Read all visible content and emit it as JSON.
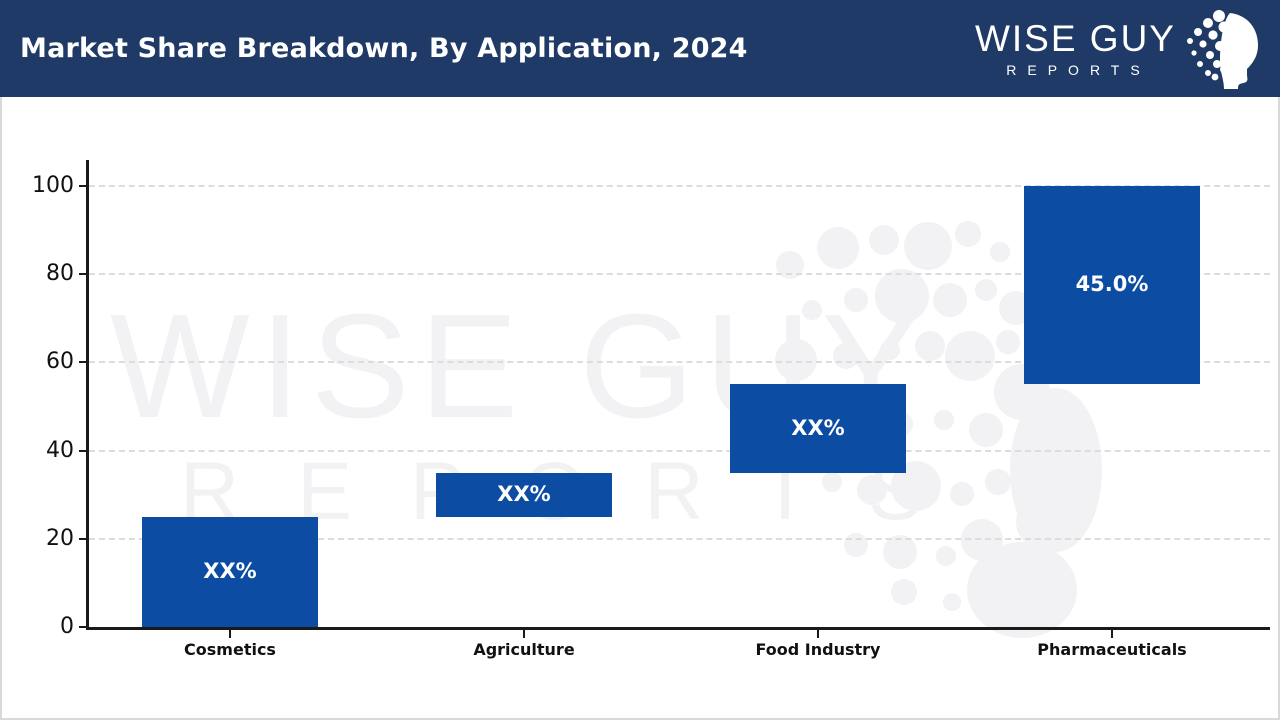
{
  "header": {
    "title": "Market Share Breakdown, By Application, 2024",
    "logo": {
      "line1": "WISE GUY",
      "line2": "REPORTS"
    }
  },
  "watermark": {
    "line1": "WISE GUY",
    "line2": "REPORTS"
  },
  "chart_data": {
    "type": "bar",
    "subtype": "floating-waterfall",
    "title": "Market Share Breakdown, By Application, 2024",
    "xlabel": "",
    "ylabel": "",
    "categories": [
      "Cosmetics",
      "Agriculture",
      "Food Industry",
      "Pharmaceuticals"
    ],
    "segments": [
      {
        "category": "Cosmetics",
        "start": 0,
        "end": 25,
        "value": 25,
        "label": "XX%"
      },
      {
        "category": "Agriculture",
        "start": 25,
        "end": 35,
        "value": 10,
        "label": "XX%"
      },
      {
        "category": "Food Industry",
        "start": 35,
        "end": 55,
        "value": 20,
        "label": "XX%"
      },
      {
        "category": "Pharmaceuticals",
        "start": 55,
        "end": 100,
        "value": 45,
        "label": "45.0%"
      }
    ],
    "yticks": [
      0,
      20,
      40,
      60,
      80,
      100
    ],
    "ylim": [
      0,
      106
    ],
    "grid": "horizontal-dashed",
    "legend": "none"
  },
  "colors": {
    "header_bg": "#1f3a66",
    "bar_fill": "#0c4ca3",
    "bar_label": "#ffffff",
    "grid_line": "#dcdcdc",
    "axis_line": "#1a1a1a",
    "watermark": "#f2f2f4",
    "frame_border": "#d9d9d9"
  }
}
